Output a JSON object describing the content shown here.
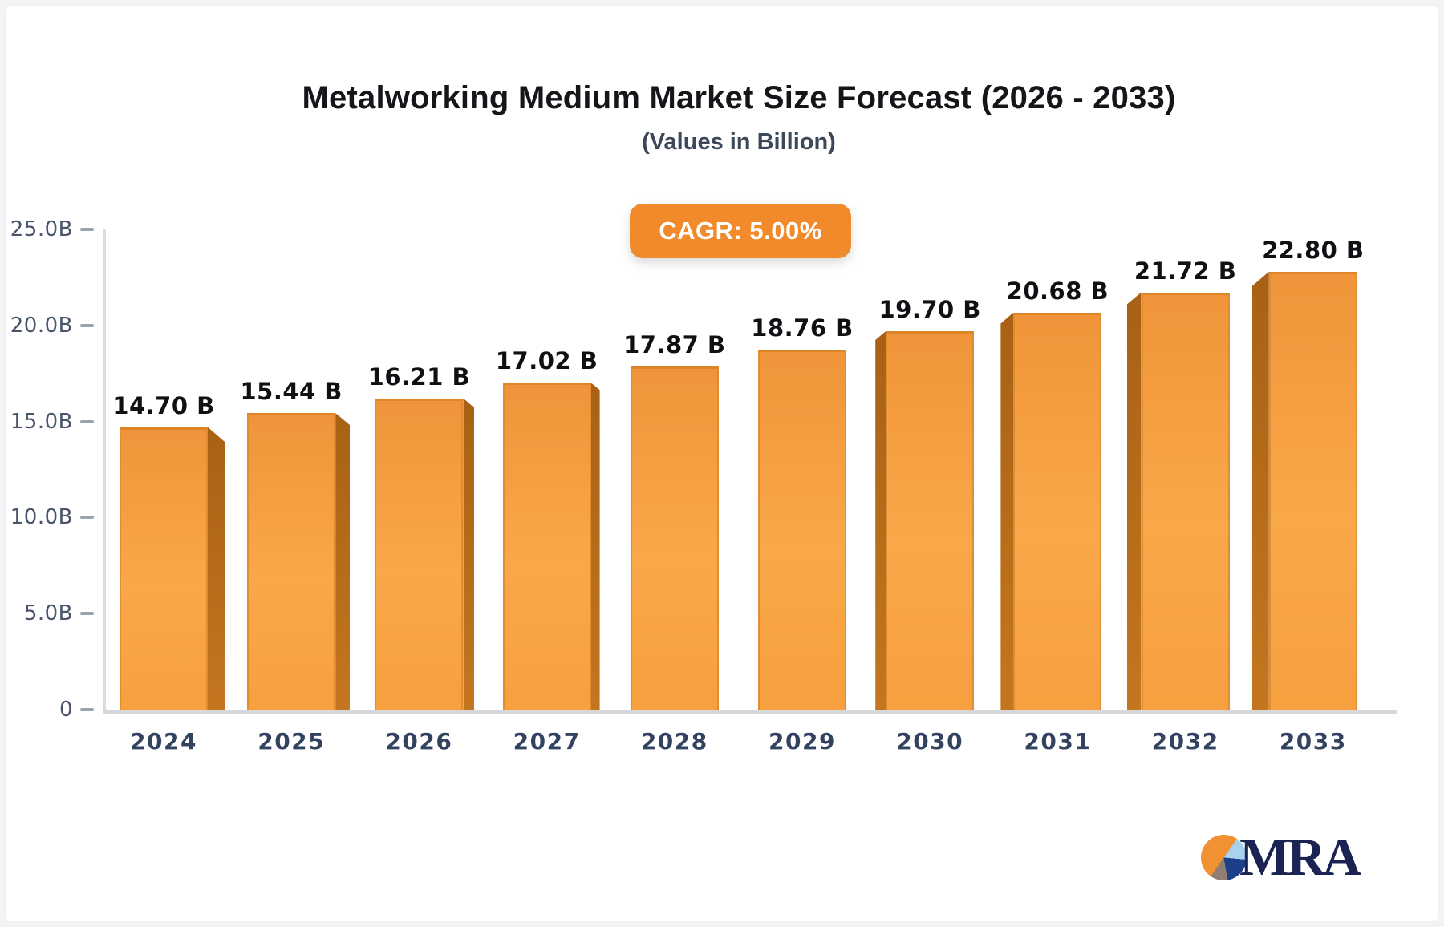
{
  "header": {
    "title": "Metalworking Medium Market Size Forecast (2026 - 2033)",
    "subtitle": "(Values in Billion)",
    "cagr_badge": "CAGR: 5.00%"
  },
  "chart_data": {
    "type": "bar",
    "title": "Metalworking Medium Market Size Forecast (2026 - 2033)",
    "subtitle": "(Values in Billion)",
    "unit": "Billion",
    "cagr": "5.00%",
    "categories": [
      "2024",
      "2025",
      "2026",
      "2027",
      "2028",
      "2029",
      "2030",
      "2031",
      "2032",
      "2033"
    ],
    "values": [
      14.7,
      15.44,
      16.21,
      17.02,
      17.87,
      18.76,
      19.7,
      20.68,
      21.72,
      22.8
    ],
    "value_labels": [
      "14.70 B",
      "15.44 B",
      "16.21 B",
      "17.02 B",
      "17.87 B",
      "18.76 B",
      "19.70 B",
      "20.68 B",
      "21.72 B",
      "22.80 B"
    ],
    "xlabel": "",
    "ylabel": "",
    "ylim": [
      0,
      25
    ],
    "yticks": [
      {
        "value": 25,
        "label": "25.0B"
      },
      {
        "value": 20,
        "label": "20.0B"
      },
      {
        "value": 15,
        "label": "15.0B"
      },
      {
        "value": 10,
        "label": "10.0B"
      },
      {
        "value": 5,
        "label": "5.0B"
      },
      {
        "value": 0,
        "label": "0"
      }
    ],
    "grid": false,
    "legend": false,
    "colors": {
      "bar_front_top": "#ef943a",
      "bar_front_mid": "#f9a849",
      "bar_front_bottom": "#f6a040",
      "bar_outline": "#dd8a2e",
      "bar_side_dark": "#a86114",
      "bar_side_light": "#c4761f",
      "axis_line": "#d8dade",
      "tick_label": "#49536a",
      "category_label": "#33435f",
      "value_label": "#0e1013",
      "badge_bg": "#f18a2b",
      "badge_text": "#ffffff"
    }
  },
  "logo": {
    "text": "MRA",
    "colors": {
      "orange": "#f09232",
      "light_blue": "#a8d2ee",
      "navy": "#1d3f8a",
      "gray": "#907e72",
      "text": "#1a2351"
    }
  }
}
